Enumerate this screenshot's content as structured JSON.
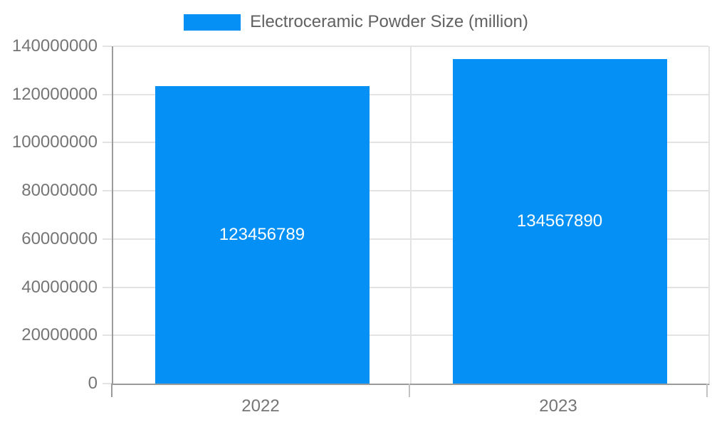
{
  "chart_data": {
    "type": "bar",
    "title": "Electroceramic Powder Size (million)",
    "categories": [
      "2022",
      "2023"
    ],
    "series": [
      {
        "name": "Electroceramic Powder Size (million)",
        "values": [
          123456789,
          134567890
        ]
      }
    ],
    "value_labels": [
      "123456789",
      "134567890"
    ],
    "xlabel": "",
    "ylabel": "",
    "ylim": [
      0,
      140000000
    ],
    "ytick_step": 20000000,
    "ytick_labels": [
      "0",
      "20000000",
      "40000000",
      "60000000",
      "80000000",
      "100000000",
      "120000000",
      "140000000"
    ],
    "grid": true,
    "legend_position": "top-center",
    "colors": {
      "bar": "#0590F5",
      "grid": "#e3e3e3",
      "axis": "#9b9b9b",
      "tick": "#c2c2c2",
      "axis_text": "#757575",
      "legend_text": "#616161",
      "bar_label": "#ffffff",
      "background": "#ffffff"
    }
  }
}
